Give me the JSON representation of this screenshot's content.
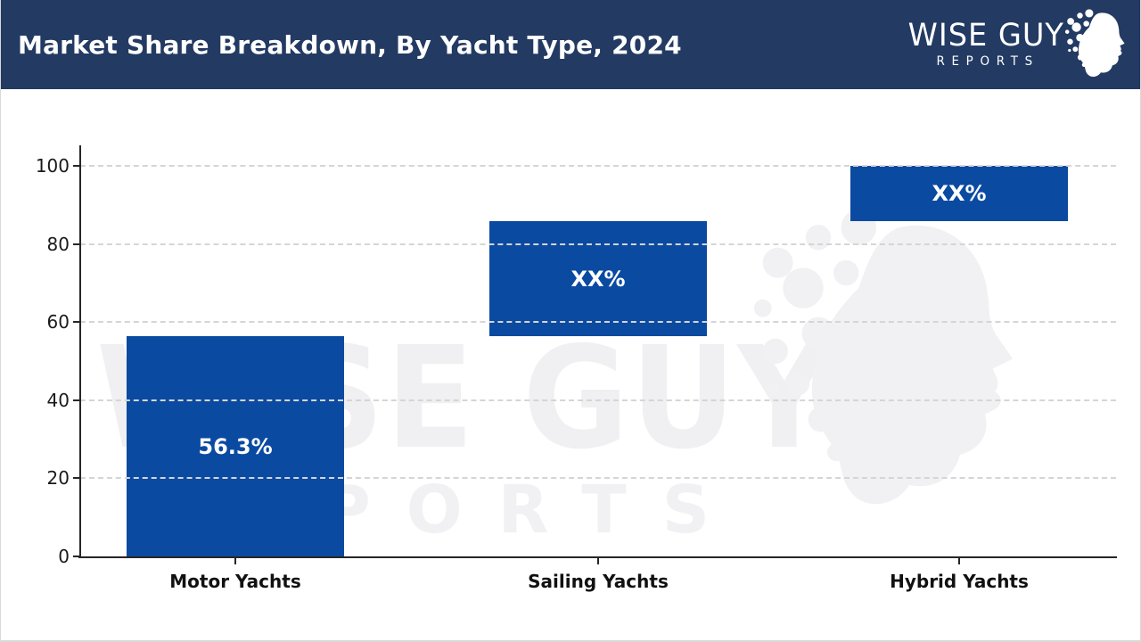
{
  "header": {
    "title": "Market Share Breakdown, By Yacht Type, 2024",
    "logo": {
      "line1": "WISE GUY",
      "line2": "REPORTS"
    }
  },
  "watermark": {
    "line1": "WISE GUY",
    "line2": "REPORTS"
  },
  "colors": {
    "header_bg": "#233a63",
    "bar_blue": "#0b4aa1",
    "gridline": "#d5d5d5",
    "axis": "#262626",
    "watermark_gray": "#f1f1f3"
  },
  "chart_data": {
    "type": "bar",
    "subtype": "waterfall-stepped",
    "title": "Market Share Breakdown, By Yacht Type, 2024",
    "categories": [
      "Motor Yachts",
      "Sailing Yachts",
      "Hybrid Yachts"
    ],
    "segments": [
      {
        "category": "Motor Yachts",
        "start": 0,
        "end": 56.3,
        "label": "56.3%"
      },
      {
        "category": "Sailing Yachts",
        "start": 56.3,
        "end": 85.8,
        "label": "XX%"
      },
      {
        "category": "Hybrid Yachts",
        "start": 85.8,
        "end": 100,
        "label": "XX%"
      }
    ],
    "xlabel": "",
    "ylabel": "",
    "ylim": [
      0,
      100
    ],
    "yticks": [
      0,
      20,
      40,
      60,
      80,
      100
    ],
    "grid": "horizontal-dashed",
    "legend": "none",
    "bar_color": "#0b4aa1",
    "value_label_color": "#ffffff"
  }
}
